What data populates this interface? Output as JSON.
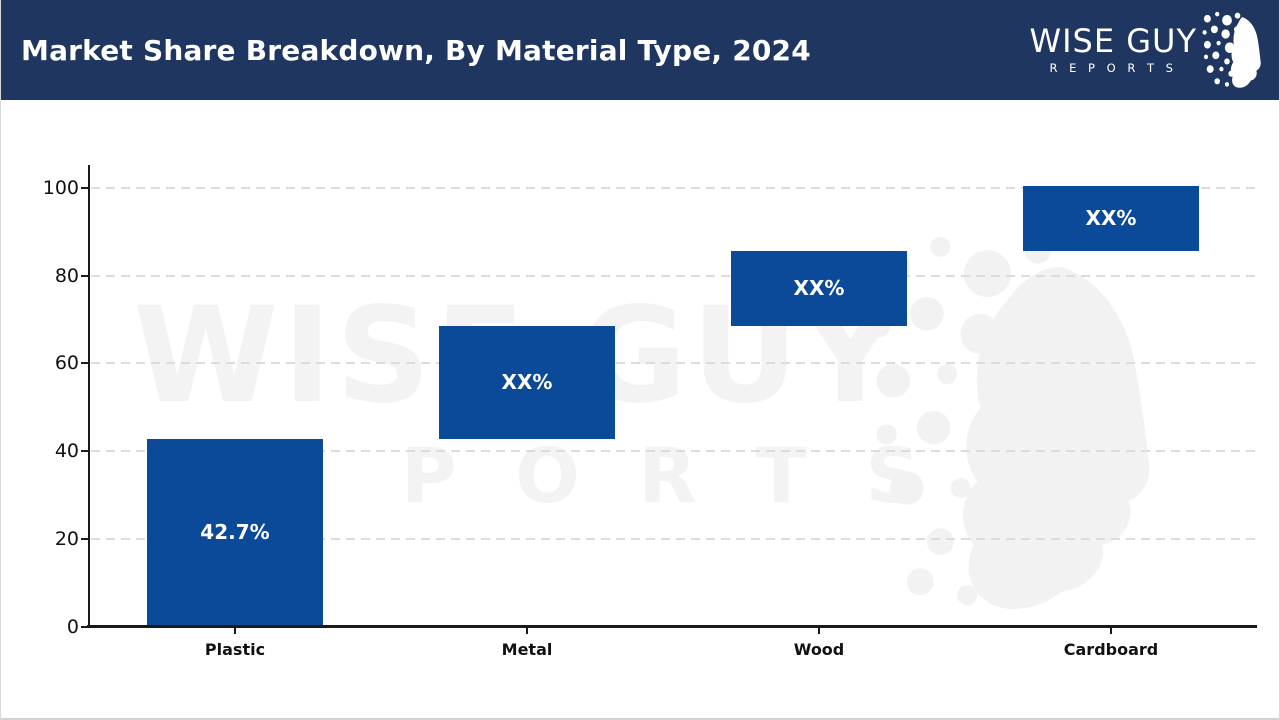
{
  "header": {
    "title": "Market Share Breakdown, By Material Type, 2024",
    "brand": {
      "line1": "WISE GUY",
      "line2": "R E P O R T S",
      "face_icon": "dotted-head-profile"
    }
  },
  "watermark": {
    "line1": "WISE GUY",
    "line2": "P O R T S",
    "face_icon": "dotted-head-profile"
  },
  "colors": {
    "header_bg": "#1f3660",
    "bar": "#0b4a99",
    "grid": "#dcdcdc",
    "axis": "#1a1a1a",
    "watermark": "#f3f3f3",
    "title_text": "#ffffff",
    "bar_label_text": "#ffffff",
    "tick_text": "#111111"
  },
  "chart_data": {
    "type": "bar",
    "subtype": "waterfall",
    "title": "Market Share Breakdown, By Material Type, 2024",
    "categories": [
      "Plastic",
      "Metal",
      "Wood",
      "Cardboard"
    ],
    "segments": [
      {
        "category": "Plastic",
        "start": 0,
        "end": 42.7,
        "label": "42.7%"
      },
      {
        "category": "Metal",
        "start": 42.7,
        "end": 68.5,
        "label": "XX%"
      },
      {
        "category": "Wood",
        "start": 68.5,
        "end": 85.7,
        "label": "XX%"
      },
      {
        "category": "Cardboard",
        "start": 85.7,
        "end": 100.4,
        "label": "XX%"
      }
    ],
    "xlabel": "",
    "ylabel": "",
    "ylim": [
      0,
      100
    ],
    "yticks": [
      0,
      20,
      40,
      60,
      80,
      100
    ],
    "grid": "horizontal-dashed",
    "legend": null
  }
}
